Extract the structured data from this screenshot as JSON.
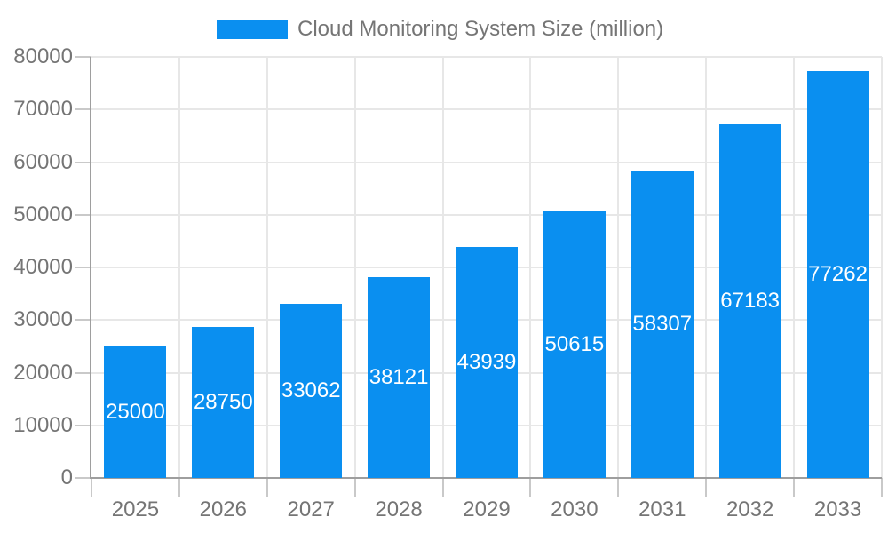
{
  "chart_data": {
    "type": "bar",
    "series_name": "Cloud Monitoring System Size (million)",
    "categories": [
      "2025",
      "2026",
      "2027",
      "2028",
      "2029",
      "2030",
      "2031",
      "2032",
      "2033"
    ],
    "values": [
      25000,
      28750,
      33062,
      38121,
      43939,
      50615,
      58307,
      67183,
      77262
    ],
    "value_labels": [
      25000,
      28750,
      33062,
      38121,
      43939,
      50615,
      58307,
      67183,
      77262
    ],
    "title": "",
    "xlabel": "",
    "ylabel": "",
    "ylim": [
      0,
      80000
    ],
    "yticks": [
      0,
      10000,
      20000,
      30000,
      40000,
      50000,
      60000,
      70000,
      80000
    ],
    "grid": "both",
    "legend_position": "top-center",
    "value_label_position": "inside-center",
    "colors": {
      "bar": "#0A8FF0",
      "axis_label": "#757575",
      "grid_line": "#e7e7e7",
      "axis_line": "#9e9e9e",
      "tick": "#c9c9c9",
      "value_label": "#ffffff",
      "background": "#ffffff"
    }
  }
}
